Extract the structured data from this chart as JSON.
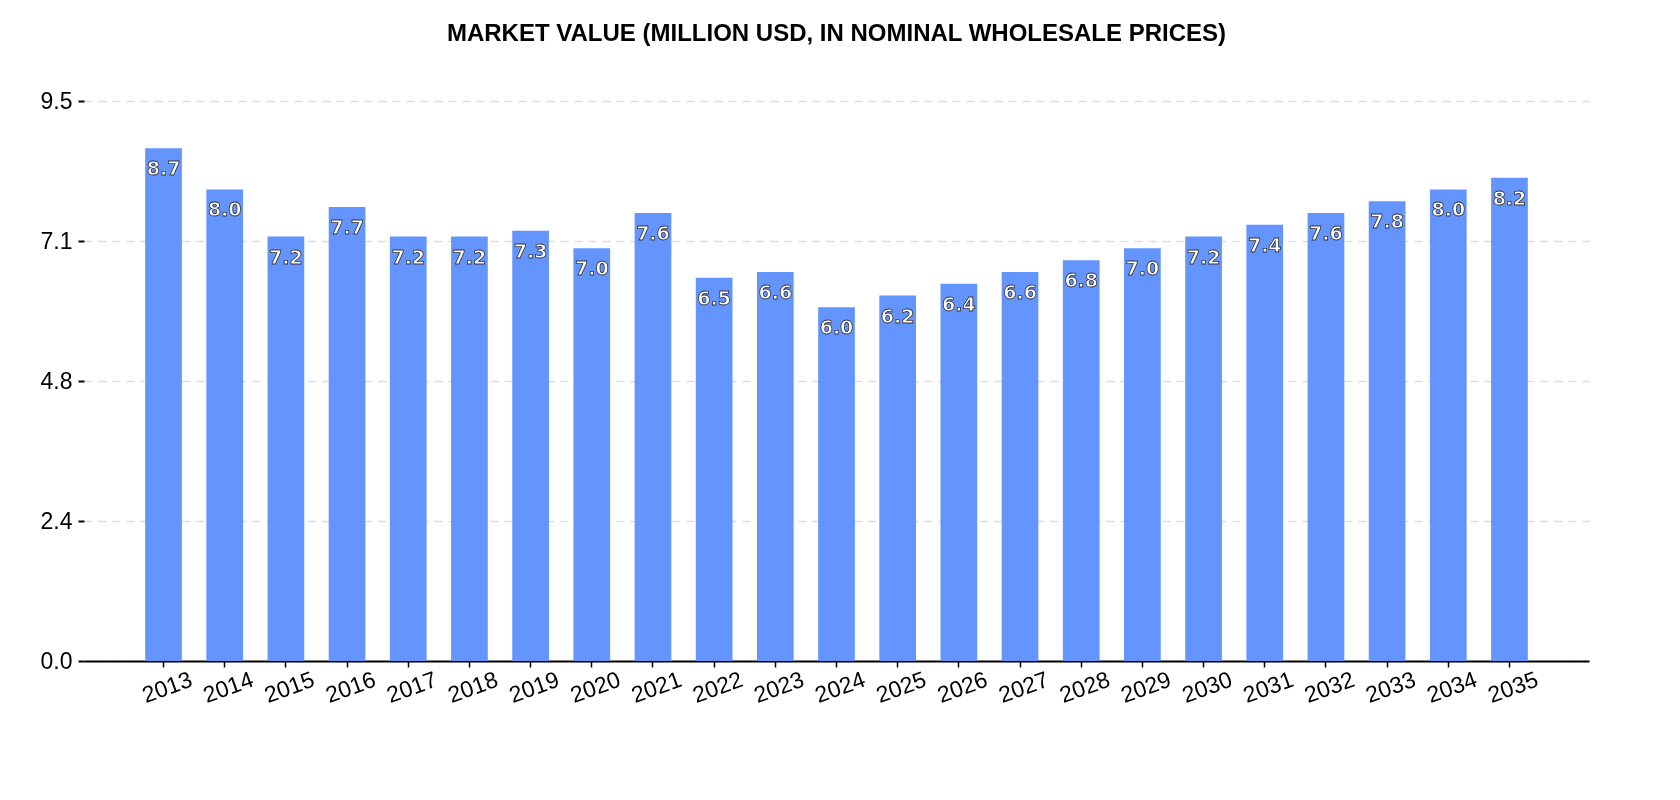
{
  "chart_data": {
    "type": "bar",
    "title": "MARKET VALUE (MILLION USD, IN NOMINAL WHOLESALE PRICES)",
    "categories": [
      "2013",
      "2014",
      "2015",
      "2016",
      "2017",
      "2018",
      "2019",
      "2020",
      "2021",
      "2022",
      "2023",
      "2024",
      "2025",
      "2026",
      "2027",
      "2028",
      "2029",
      "2030",
      "2031",
      "2032",
      "2033",
      "2034",
      "2035"
    ],
    "values": [
      8.7,
      8.0,
      7.2,
      7.7,
      7.2,
      7.2,
      7.3,
      7.0,
      7.6,
      6.5,
      6.6,
      6.0,
      6.2,
      6.4,
      6.6,
      6.8,
      7.0,
      7.2,
      7.4,
      7.6,
      7.8,
      8.0,
      8.2
    ],
    "value_labels": [
      "8.7",
      "8.0",
      "7.2",
      "7.7",
      "7.2",
      "7.2",
      "7.3",
      "7.0",
      "7.6",
      "6.5",
      "6.6",
      "6.0",
      "6.2",
      "6.4",
      "6.6",
      "6.8",
      "7.0",
      "7.2",
      "7.4",
      "7.6",
      "7.8",
      "8.0",
      "8.2"
    ],
    "color": "#6495fe",
    "ylim": [
      0,
      9.5
    ],
    "yticks": [
      {
        "value": 0,
        "label": "0.0"
      },
      {
        "value": 2.375,
        "label": "2.4"
      },
      {
        "value": 4.75,
        "label": "4.8"
      },
      {
        "value": 7.125,
        "label": "7.1"
      },
      9.5
    ],
    "grid": "y"
  }
}
